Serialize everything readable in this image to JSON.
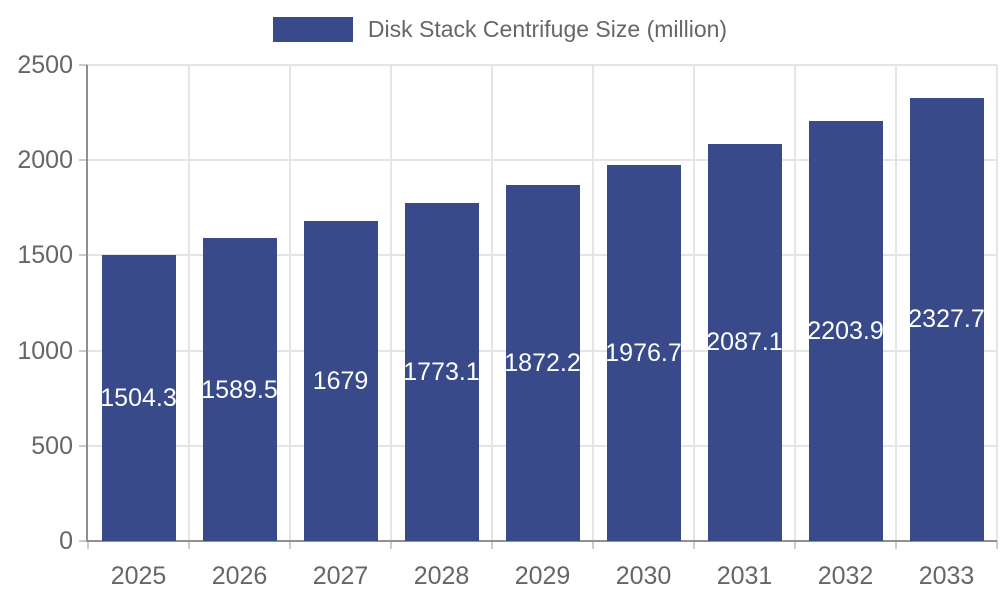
{
  "chart_data": {
    "type": "bar",
    "title": "Disk Stack Centrifuge Size (million)",
    "series_name": "Disk Stack Centrifuge Size (million)",
    "categories": [
      "2025",
      "2026",
      "2027",
      "2028",
      "2029",
      "2030",
      "2031",
      "2032",
      "2033"
    ],
    "values": [
      1504.3,
      1589.5,
      1679,
      1773.1,
      1872.2,
      1976.7,
      2087.1,
      2203.9,
      2327.7
    ],
    "value_labels": [
      "1504.3",
      "1589.5",
      "1679",
      "1773.1",
      "1872.2",
      "1976.7",
      "2087.1",
      "2203.9",
      "2327.7"
    ],
    "xlabel": "",
    "ylabel": "",
    "ylim": [
      0,
      2500
    ],
    "ytick_step": 500,
    "yticks": [
      "0",
      "500",
      "1000",
      "1500",
      "2000",
      "2500"
    ],
    "grid": true,
    "legend_position": "top"
  },
  "colors": {
    "bar": "#394a8a",
    "background": "#ffffff",
    "grid_line": "#e5e5e5",
    "tick": "#cccccc",
    "axis_line": "#909090",
    "axis_text": "#666666",
    "legend_text": "#666666",
    "value_label_text": "#ffffff"
  }
}
